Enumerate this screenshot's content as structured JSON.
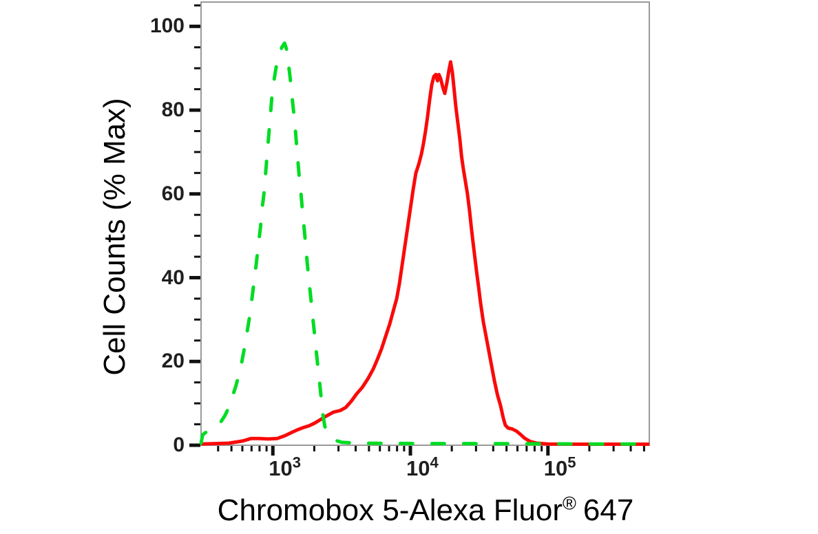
{
  "labels": {
    "y_title": "Cell Counts (% Max)",
    "x_title_main": "Chromobox 5-Alexa Fluor",
    "x_title_sup": "®",
    "x_title_suffix": "647"
  },
  "colors": {
    "background": "#ffffff",
    "frame": "#999999",
    "ticks": "#111111",
    "tick_text": "#1f1f1f",
    "title_text": "#000000",
    "green_curve": "#00dc23",
    "red_curve": "#fa0a0a"
  },
  "y_axis": {
    "tick_labels": [
      "0",
      "20",
      "40",
      "60",
      "80",
      "100"
    ],
    "tick_values": [
      0,
      20,
      40,
      60,
      80,
      100
    ],
    "minor_step": 5
  },
  "x_axis": {
    "decade_base": "10",
    "decade_exponents": [
      "3",
      "4",
      "5"
    ]
  },
  "chart_data": {
    "type": "line",
    "title": "",
    "xlabel": "Chromobox 5-Alexa Fluor® 647",
    "ylabel": "Cell Counts (% Max)",
    "x_scale": "log10",
    "xlim_log10": [
      2.478,
      5.737
    ],
    "x_tick_values": [
      1000,
      10000,
      100000
    ],
    "ylim": [
      0,
      105.8
    ],
    "grid": false,
    "legend": "none",
    "series": [
      {
        "name": "red-solid",
        "color": "#fa0a0a",
        "style": "solid",
        "peak_x": 19500,
        "peak_y": 91.5,
        "points": [
          [
            2.478,
            0.3
          ],
          [
            2.58,
            0.4
          ],
          [
            2.68,
            0.5
          ],
          [
            2.78,
            1.0
          ],
          [
            2.84,
            1.6
          ],
          [
            2.9,
            1.6
          ],
          [
            2.97,
            1.5
          ],
          [
            3.03,
            1.6
          ],
          [
            3.09,
            2.3
          ],
          [
            3.14,
            3.1
          ],
          [
            3.18,
            3.7
          ],
          [
            3.22,
            4.2
          ],
          [
            3.26,
            4.6
          ],
          [
            3.3,
            5.2
          ],
          [
            3.34,
            6.0
          ],
          [
            3.39,
            7.0
          ],
          [
            3.44,
            7.9
          ],
          [
            3.49,
            8.3
          ],
          [
            3.53,
            9.0
          ],
          [
            3.57,
            10.5
          ],
          [
            3.61,
            12.3
          ],
          [
            3.65,
            13.8
          ],
          [
            3.69,
            15.8
          ],
          [
            3.73,
            18.2
          ],
          [
            3.76,
            20.5
          ],
          [
            3.79,
            23.0
          ],
          [
            3.82,
            26.0
          ],
          [
            3.85,
            29.0
          ],
          [
            3.875,
            32.0
          ],
          [
            3.9,
            35.0
          ],
          [
            3.92,
            38.5
          ],
          [
            3.94,
            43.0
          ],
          [
            3.96,
            47.5
          ],
          [
            3.98,
            52.0
          ],
          [
            4.0,
            56.5
          ],
          [
            4.02,
            61.0
          ],
          [
            4.04,
            65.0
          ],
          [
            4.06,
            67.0
          ],
          [
            4.08,
            69.5
          ],
          [
            4.095,
            72.0
          ],
          [
            4.11,
            75.0
          ],
          [
            4.125,
            78.5
          ],
          [
            4.14,
            82.5
          ],
          [
            4.155,
            86.0
          ],
          [
            4.17,
            88.0
          ],
          [
            4.185,
            88.5
          ],
          [
            4.197,
            87.0
          ],
          [
            4.207,
            88.5
          ],
          [
            4.22,
            87.5
          ],
          [
            4.235,
            85.5
          ],
          [
            4.25,
            84.0
          ],
          [
            4.265,
            86.5
          ],
          [
            4.28,
            89.5
          ],
          [
            4.292,
            91.5
          ],
          [
            4.305,
            89.0
          ],
          [
            4.318,
            85.0
          ],
          [
            4.33,
            81.0
          ],
          [
            4.345,
            77.0
          ],
          [
            4.36,
            73.0
          ],
          [
            4.372,
            69.0
          ],
          [
            4.385,
            66.0
          ],
          [
            4.4,
            63.0
          ],
          [
            4.415,
            60.0
          ],
          [
            4.43,
            56.0
          ],
          [
            4.443,
            52.0
          ],
          [
            4.457,
            48.0
          ],
          [
            4.47,
            44.5
          ],
          [
            4.483,
            41.0
          ],
          [
            4.497,
            37.5
          ],
          [
            4.51,
            34.0
          ],
          [
            4.53,
            29.5
          ],
          [
            4.55,
            26.0
          ],
          [
            4.57,
            22.5
          ],
          [
            4.59,
            19.0
          ],
          [
            4.61,
            15.5
          ],
          [
            4.633,
            12.0
          ],
          [
            4.655,
            9.5
          ],
          [
            4.675,
            6.5
          ],
          [
            4.69,
            4.8
          ],
          [
            4.71,
            4.1
          ],
          [
            4.74,
            3.9
          ],
          [
            4.77,
            3.4
          ],
          [
            4.8,
            2.6
          ],
          [
            4.83,
            1.7
          ],
          [
            4.87,
            0.9
          ],
          [
            4.92,
            0.5
          ],
          [
            5.0,
            0.3
          ],
          [
            5.2,
            0.25
          ],
          [
            5.45,
            0.25
          ],
          [
            5.737,
            0.25
          ]
        ]
      },
      {
        "name": "green-dashed",
        "color": "#00dc23",
        "style": "dashed",
        "peak_x": 1210,
        "peak_y": 96,
        "points": [
          [
            2.478,
            0.5
          ],
          [
            2.49,
            2.5
          ],
          [
            2.51,
            3.0
          ],
          [
            2.55,
            3.5
          ],
          [
            2.585,
            4.5
          ],
          [
            2.62,
            5.5
          ],
          [
            2.65,
            7.0
          ],
          [
            2.68,
            9.0
          ],
          [
            2.705,
            11.5
          ],
          [
            2.73,
            14.0
          ],
          [
            2.755,
            17.0
          ],
          [
            2.775,
            20.0
          ],
          [
            2.795,
            23.5
          ],
          [
            2.815,
            27.5
          ],
          [
            2.835,
            31.5
          ],
          [
            2.85,
            35.5
          ],
          [
            2.865,
            39.5
          ],
          [
            2.88,
            43.5
          ],
          [
            2.895,
            48.0
          ],
          [
            2.91,
            52.0
          ],
          [
            2.92,
            56.0
          ],
          [
            2.935,
            60.0
          ],
          [
            2.945,
            64.0
          ],
          [
            2.955,
            68.0
          ],
          [
            2.965,
            72.0
          ],
          [
            2.975,
            76.0
          ],
          [
            2.985,
            80.0
          ],
          [
            2.995,
            84.0
          ],
          [
            3.01,
            87.5
          ],
          [
            3.025,
            90.5
          ],
          [
            3.045,
            93.0
          ],
          [
            3.065,
            95.0
          ],
          [
            3.085,
            96.0
          ],
          [
            3.1,
            94.5
          ],
          [
            3.112,
            91.5
          ],
          [
            3.125,
            88.0
          ],
          [
            3.137,
            84.0
          ],
          [
            3.15,
            80.0
          ],
          [
            3.162,
            76.0
          ],
          [
            3.172,
            72.0
          ],
          [
            3.182,
            68.0
          ],
          [
            3.192,
            64.0
          ],
          [
            3.205,
            60.0
          ],
          [
            3.215,
            56.0
          ],
          [
            3.227,
            52.0
          ],
          [
            3.24,
            47.5
          ],
          [
            3.25,
            43.5
          ],
          [
            3.262,
            39.5
          ],
          [
            3.275,
            35.5
          ],
          [
            3.287,
            31.5
          ],
          [
            3.3,
            27.5
          ],
          [
            3.312,
            23.5
          ],
          [
            3.325,
            19.5
          ],
          [
            3.34,
            15.0
          ],
          [
            3.352,
            11.0
          ],
          [
            3.365,
            7.0
          ],
          [
            3.378,
            4.5
          ],
          [
            3.395,
            3.0
          ],
          [
            3.42,
            2.0
          ],
          [
            3.45,
            1.2
          ],
          [
            3.5,
            0.7
          ],
          [
            3.6,
            0.5
          ],
          [
            3.8,
            0.45
          ],
          [
            4.1,
            0.4
          ],
          [
            4.5,
            0.4
          ],
          [
            4.9,
            0.35
          ],
          [
            5.3,
            0.3
          ],
          [
            5.737,
            0.3
          ]
        ]
      }
    ]
  }
}
